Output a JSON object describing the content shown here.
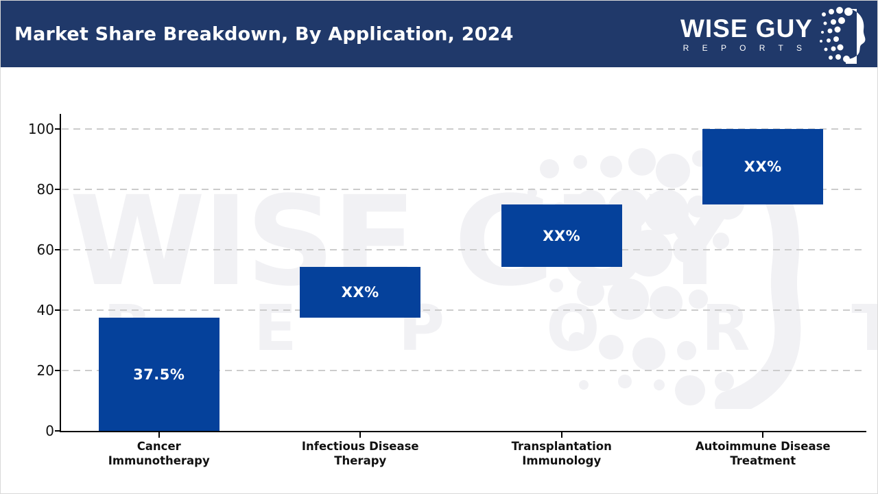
{
  "header": {
    "title": "Market Share Breakdown, By Application, 2024",
    "logo": {
      "wordmark": "WISE GUY",
      "subtext": "R E P O R T S"
    }
  },
  "watermark": {
    "line1": "WISE GUY",
    "line2": "R E P O R T S"
  },
  "colors": {
    "header_bg": "#20396A",
    "bar": "#05419B",
    "gridline": "#CCCCCC",
    "axis": "#000000",
    "bar_label": "#FFFFFF",
    "text": "#111111",
    "watermark": "#F1F1F4"
  },
  "chart_data": {
    "type": "bar",
    "subtype": "waterfall",
    "title": "Market Share Breakdown, By Application, 2024",
    "xlabel": "",
    "ylabel": "",
    "ylim": [
      0,
      105
    ],
    "yticks": [
      0,
      20,
      40,
      60,
      80,
      100
    ],
    "grid": "horizontal-dashed",
    "legend": "none",
    "categories": [
      "Cancer\nImmunotherapy",
      "Infectious Disease\nTherapy",
      "Transplantation\nImmunology",
      "Autoimmune Disease\nTreatment"
    ],
    "segments": [
      {
        "category": "Cancer Immunotherapy",
        "start": 0,
        "end": 37.5,
        "label": "37.5%"
      },
      {
        "category": "Infectious Disease Therapy",
        "start": 37.5,
        "end": 54.3,
        "label": "XX%"
      },
      {
        "category": "Transplantation Immunology",
        "start": 54.3,
        "end": 75,
        "label": "XX%"
      },
      {
        "category": "Autoimmune Disease Treatment",
        "start": 75,
        "end": 100,
        "label": "XX%"
      }
    ]
  }
}
